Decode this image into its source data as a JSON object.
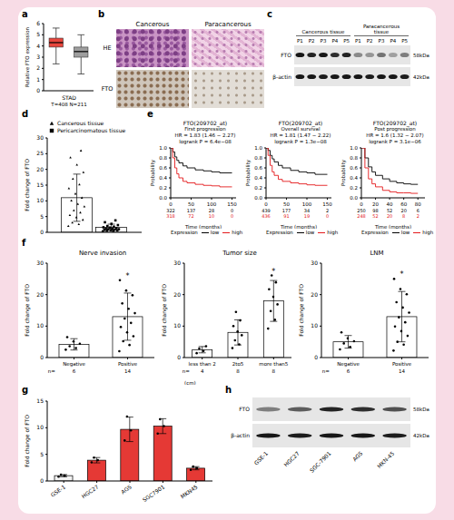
{
  "chart_data": [
    {
      "panel": "a",
      "type": "box",
      "y_label": "Relative FTO expression",
      "x_label": "STAD",
      "subtitle": "T=408 N=211",
      "categories": [
        null,
        null
      ],
      "boxes": [
        {
          "min": 2.4,
          "q1": 3.9,
          "median": 4.3,
          "q3": 4.7,
          "max": 5.6
        },
        {
          "min": 1.5,
          "q1": 3.0,
          "median": 3.5,
          "q3": 3.9,
          "max": 5.0
        }
      ],
      "colors": [
        "#e8453c",
        "#9e9e9e"
      ],
      "ylim": [
        0,
        6
      ],
      "yticks": [
        0,
        1,
        2,
        3,
        4,
        5,
        6
      ]
    },
    {
      "panel": "b",
      "type": "image",
      "columns": [
        "Cancerous",
        "Paracancerous"
      ],
      "rows": [
        "HE",
        "FTO"
      ]
    },
    {
      "panel": "c",
      "type": "blot",
      "groups": [
        "Cancerous tissue",
        "Paracancerous tissue"
      ],
      "lanes": [
        "P1",
        "P2",
        "P3",
        "P4",
        "P5",
        "P1",
        "P2",
        "P3",
        "P4",
        "P5"
      ],
      "bands": [
        {
          "name": "FTO",
          "size": "58kDa",
          "intensity": [
            0.9,
            0.85,
            0.9,
            0.8,
            0.85,
            0.4,
            0.35,
            0.5,
            0.3,
            0.45
          ]
        },
        {
          "name": "β-actin",
          "size": "42kDa",
          "intensity": [
            0.9,
            0.9,
            0.88,
            0.9,
            0.9,
            0.9,
            0.88,
            0.9,
            0.9,
            0.88
          ]
        }
      ]
    },
    {
      "panel": "d",
      "type": "bar",
      "y_label": "Fold change of FTO",
      "categories": [
        null
      ],
      "legend": "top",
      "ylim": [
        0,
        30
      ],
      "yticks": [
        0,
        5,
        10,
        15,
        20,
        25,
        30
      ],
      "series": [
        {
          "name": "Cancerous tissue",
          "color": "#ffffff",
          "marker": "triangle",
          "values": [
            11
          ],
          "error": [
            7.5
          ],
          "points": [
            [
              2.0,
              2.6,
              3.1,
              4.0,
              4.8,
              5.5,
              6.3,
              7.0,
              8.2,
              9.0,
              10.1,
              11.0,
              12.3,
              14.0,
              15.2,
              17.0,
              19.1,
              21.5,
              23.8,
              26.0
            ]
          ]
        },
        {
          "name": "Pericarcinomatous tissue",
          "color": "#ffffff",
          "marker": "square",
          "values": [
            1.6
          ],
          "error": [
            1.0
          ],
          "points": [
            [
              0.3,
              0.4,
              0.5,
              0.6,
              0.7,
              0.8,
              0.9,
              1.0,
              1.0,
              1.1,
              1.2,
              1.3,
              1.5,
              1.6,
              1.8,
              2.0,
              2.3,
              2.7,
              3.2,
              3.8
            ]
          ]
        }
      ]
    },
    {
      "panel": "e",
      "type": "line",
      "title": "FTO(209702_at)",
      "subtitle": "First progression",
      "annotations": [
        "HR = 1.83 (1.46 − 2.27)",
        "logrank P = 6.4e−08"
      ],
      "x_label": "Time (months)",
      "y_label": "Probability",
      "legend_title": "Expression",
      "legend": "bottom",
      "line_style": "step",
      "x": [
        0,
        5,
        10,
        15,
        20,
        30,
        40,
        60,
        80,
        100,
        120,
        150
      ],
      "xlim": [
        0,
        160
      ],
      "xticks": [
        0,
        50,
        100,
        150
      ],
      "ylim": [
        0,
        1
      ],
      "yticks": [
        {
          "value": 0,
          "label": "0.0"
        },
        {
          "value": 0.2,
          "label": "0.2"
        },
        {
          "value": 0.4,
          "label": "0.4"
        },
        {
          "value": 0.6,
          "label": "0.6"
        },
        {
          "value": 0.8,
          "label": "0.8"
        },
        {
          "value": 1,
          "label": "1.0"
        }
      ],
      "series": [
        {
          "name": "low",
          "color": "#000000",
          "values": [
            1,
            0.92,
            0.82,
            0.75,
            0.7,
            0.64,
            0.6,
            0.56,
            0.54,
            0.52,
            0.5,
            0.5
          ],
          "at_risk": [
            322,
            137,
            28,
            0
          ]
        },
        {
          "name": "high",
          "color": "#e41a1c",
          "values": [
            1,
            0.8,
            0.6,
            0.48,
            0.4,
            0.33,
            0.3,
            0.27,
            0.25,
            0.24,
            0.22,
            0.22
          ],
          "at_risk": [
            318,
            72,
            10,
            0
          ]
        }
      ]
    },
    {
      "type": "line",
      "title": "FTO(209702_at)",
      "subtitle": "Overall survival",
      "annotations": [
        "HR = 1.81 (1.47 − 2.22)",
        "logrank P = 1.3e−08"
      ],
      "x_label": "Time (months)",
      "y_label": "Probability",
      "legend_title": "Expression",
      "legend": "bottom",
      "line_style": "step",
      "x": [
        0,
        5,
        10,
        15,
        20,
        30,
        40,
        60,
        80,
        100,
        120,
        150
      ],
      "xlim": [
        0,
        160
      ],
      "xticks": [
        0,
        50,
        100,
        150
      ],
      "ylim": [
        0,
        1
      ],
      "yticks": [
        {
          "value": 0,
          "label": "0.0"
        },
        {
          "value": 0.2,
          "label": "0.2"
        },
        {
          "value": 0.4,
          "label": "0.4"
        },
        {
          "value": 0.6,
          "label": "0.6"
        },
        {
          "value": 0.8,
          "label": "0.8"
        },
        {
          "value": 1,
          "label": "1.0"
        }
      ],
      "series": [
        {
          "name": "low",
          "color": "#000000",
          "values": [
            1,
            0.95,
            0.85,
            0.78,
            0.72,
            0.65,
            0.6,
            0.55,
            0.52,
            0.5,
            0.47,
            0.47
          ],
          "at_risk": [
            439,
            177,
            34,
            2
          ]
        },
        {
          "name": "high",
          "color": "#e41a1c",
          "values": [
            1,
            0.85,
            0.65,
            0.52,
            0.45,
            0.37,
            0.33,
            0.3,
            0.28,
            0.26,
            0.25,
            0.25
          ],
          "at_risk": [
            436,
            91,
            19,
            0
          ]
        }
      ]
    },
    {
      "type": "line",
      "title": "FTO(209702_at)",
      "subtitle": "Post progression",
      "annotations": [
        "HR = 1.6 (1.32 − 2.07)",
        "logrank P = 3.1e−06"
      ],
      "x_label": "Time (months)",
      "y_label": "Probability",
      "legend_title": "Expression",
      "legend": "bottom",
      "line_style": "step",
      "x": [
        0,
        5,
        10,
        15,
        20,
        30,
        40,
        50,
        60,
        70,
        80
      ],
      "xlim": [
        0,
        90
      ],
      "xticks": [
        0,
        20,
        40,
        60,
        80
      ],
      "ylim": [
        0,
        1
      ],
      "yticks": [
        {
          "value": 0,
          "label": "0.0"
        },
        {
          "value": 0.2,
          "label": "0.2"
        },
        {
          "value": 0.4,
          "label": "0.4"
        },
        {
          "value": 0.6,
          "label": "0.6"
        },
        {
          "value": 0.8,
          "label": "0.8"
        },
        {
          "value": 1,
          "label": "1.0"
        }
      ],
      "series": [
        {
          "name": "low",
          "color": "#000000",
          "values": [
            1,
            0.8,
            0.62,
            0.52,
            0.45,
            0.38,
            0.33,
            0.3,
            0.28,
            0.27,
            0.27
          ],
          "at_risk": [
            250,
            98,
            52,
            20,
            6
          ]
        },
        {
          "name": "high",
          "color": "#e41a1c",
          "values": [
            1,
            0.6,
            0.38,
            0.28,
            0.22,
            0.15,
            0.12,
            0.1,
            0.1,
            0.09,
            0.09
          ],
          "at_risk": [
            248,
            52,
            20,
            8,
            2
          ]
        }
      ]
    },
    {
      "panel": "f",
      "type": "bar",
      "title": "Nerve invasion",
      "y_label": "Fold change of FTO",
      "categories": [
        "Negative",
        "Positive"
      ],
      "n_label": "n=",
      "n": [
        6,
        14
      ],
      "values": [
        4.2,
        13
      ],
      "error": [
        1.8,
        7.5
      ],
      "points": [
        [
          2.5,
          3.0,
          3.6,
          4.4,
          5.1,
          6.5
        ],
        [
          2.0,
          4.0,
          5.2,
          6.8,
          8.0,
          9.7,
          11.0,
          12.4,
          14.1,
          15.5,
          17.2,
          19.8,
          21.3,
          24.6
        ]
      ],
      "significance": [
        null,
        "*"
      ],
      "color": "#ffffff",
      "marker": "circle",
      "ylim": [
        0,
        30
      ],
      "yticks": [
        0,
        10,
        20,
        30
      ]
    },
    {
      "type": "bar",
      "title": "Tumor size",
      "y_label": "Fold change of FTO",
      "x_label": "(cm)",
      "categories": [
        "less than 2",
        "2to5",
        "more than5"
      ],
      "n_label": "n=",
      "n": [
        4,
        8,
        8
      ],
      "values": [
        2.5,
        8,
        18
      ],
      "error": [
        1,
        4,
        6.5
      ],
      "points": [
        [
          1.4,
          2.1,
          2.9,
          3.6
        ],
        [
          3.0,
          4.2,
          5.5,
          7.1,
          8.3,
          10.0,
          11.8,
          14.5
        ],
        [
          9.2,
          12.0,
          14.8,
          16.9,
          19.3,
          21.7,
          23.9,
          26.1
        ]
      ],
      "significance": [
        null,
        null,
        "*"
      ],
      "color": "#ffffff",
      "marker": "circle",
      "ylim": [
        0,
        30
      ],
      "yticks": [
        0,
        10,
        20,
        30
      ]
    },
    {
      "type": "bar",
      "title": "LNM",
      "y_label": "Fold change of FTO",
      "categories": [
        "Negative",
        "Positive"
      ],
      "n_label": "n=",
      "n": [
        6,
        14
      ],
      "values": [
        5,
        13
      ],
      "error": [
        2,
        8
      ],
      "points": [
        [
          2.6,
          3.4,
          4.5,
          5.2,
          6.1,
          8.0
        ],
        [
          2.2,
          4.1,
          5.0,
          6.9,
          8.4,
          9.9,
          11.2,
          12.8,
          14.3,
          15.9,
          17.6,
          20.1,
          21.8,
          25.0
        ]
      ],
      "significance": [
        null,
        "*"
      ],
      "color": "#ffffff",
      "marker": "circle",
      "ylim": [
        0,
        30
      ],
      "yticks": [
        0,
        10,
        20,
        30
      ]
    },
    {
      "panel": "g",
      "type": "bar",
      "y_label": "Fold change of FTO",
      "categories": [
        "GSE-1",
        "HGC27",
        "AGS",
        "SGC7901",
        "MKN45"
      ],
      "values": [
        1.0,
        3.9,
        9.7,
        10.3,
        2.4
      ],
      "error": [
        0.2,
        0.5,
        2.3,
        1.4,
        0.3
      ],
      "points": [
        [
          0.8,
          1.0,
          1.2
        ],
        [
          3.5,
          3.9,
          4.4
        ],
        [
          7.6,
          9.5,
          12.1
        ],
        [
          8.9,
          10.3,
          11.6
        ],
        [
          2.1,
          2.4,
          2.7
        ]
      ],
      "colors": [
        "#f2f2f2",
        "#e53935",
        "#e53935",
        "#e53935",
        "#e53935"
      ],
      "marker": "circle",
      "ylim": [
        0,
        15
      ],
      "yticks": [
        0,
        5,
        10,
        15
      ]
    },
    {
      "panel": "h",
      "type": "blot",
      "lanes": [
        "GSE-1",
        "HGC27",
        "SGC-7901",
        "AGS",
        "MKN-45"
      ],
      "bands": [
        {
          "name": "FTO",
          "size": "58kDa",
          "intensity": [
            0.45,
            0.6,
            0.85,
            0.8,
            0.65
          ]
        },
        {
          "name": "β-actin",
          "size": "42kDa",
          "intensity": [
            0.9,
            0.88,
            0.9,
            0.9,
            0.88
          ]
        }
      ]
    }
  ]
}
